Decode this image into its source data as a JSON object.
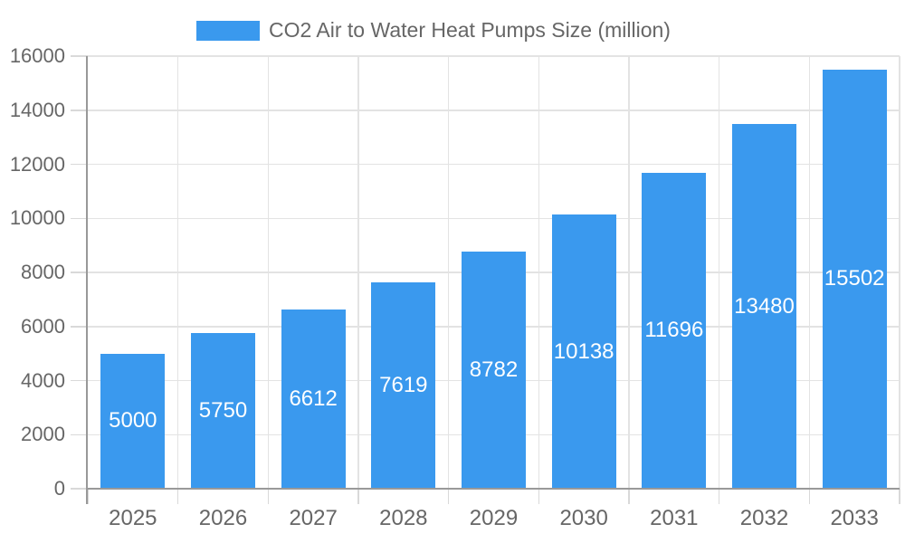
{
  "chart_data": {
    "type": "bar",
    "legend_label": "CO2 Air to Water Heat Pumps Size (million)",
    "categories": [
      "2025",
      "2026",
      "2027",
      "2028",
      "2029",
      "2030",
      "2031",
      "2032",
      "2033"
    ],
    "values": [
      5000,
      5750,
      6612,
      7619,
      8782,
      10138,
      11696,
      13480,
      15502
    ],
    "ylim": [
      0,
      16000
    ],
    "ytick_step": 2000,
    "y_tick_labels": [
      "0",
      "2000",
      "4000",
      "6000",
      "8000",
      "10000",
      "12000",
      "14000",
      "16000"
    ],
    "xlabel": "",
    "ylabel": "",
    "legend_position": "top-center",
    "grid": true,
    "value_labels": "centered-inside-bars",
    "colors": {
      "bar": "#3A99EE",
      "value_label": "#FFFFFF",
      "axis_text": "#666666",
      "gridline": "#E3E3E3",
      "tick": "#D9D9D9",
      "axis_line": "#999999",
      "background": "#FFFFFF"
    }
  }
}
